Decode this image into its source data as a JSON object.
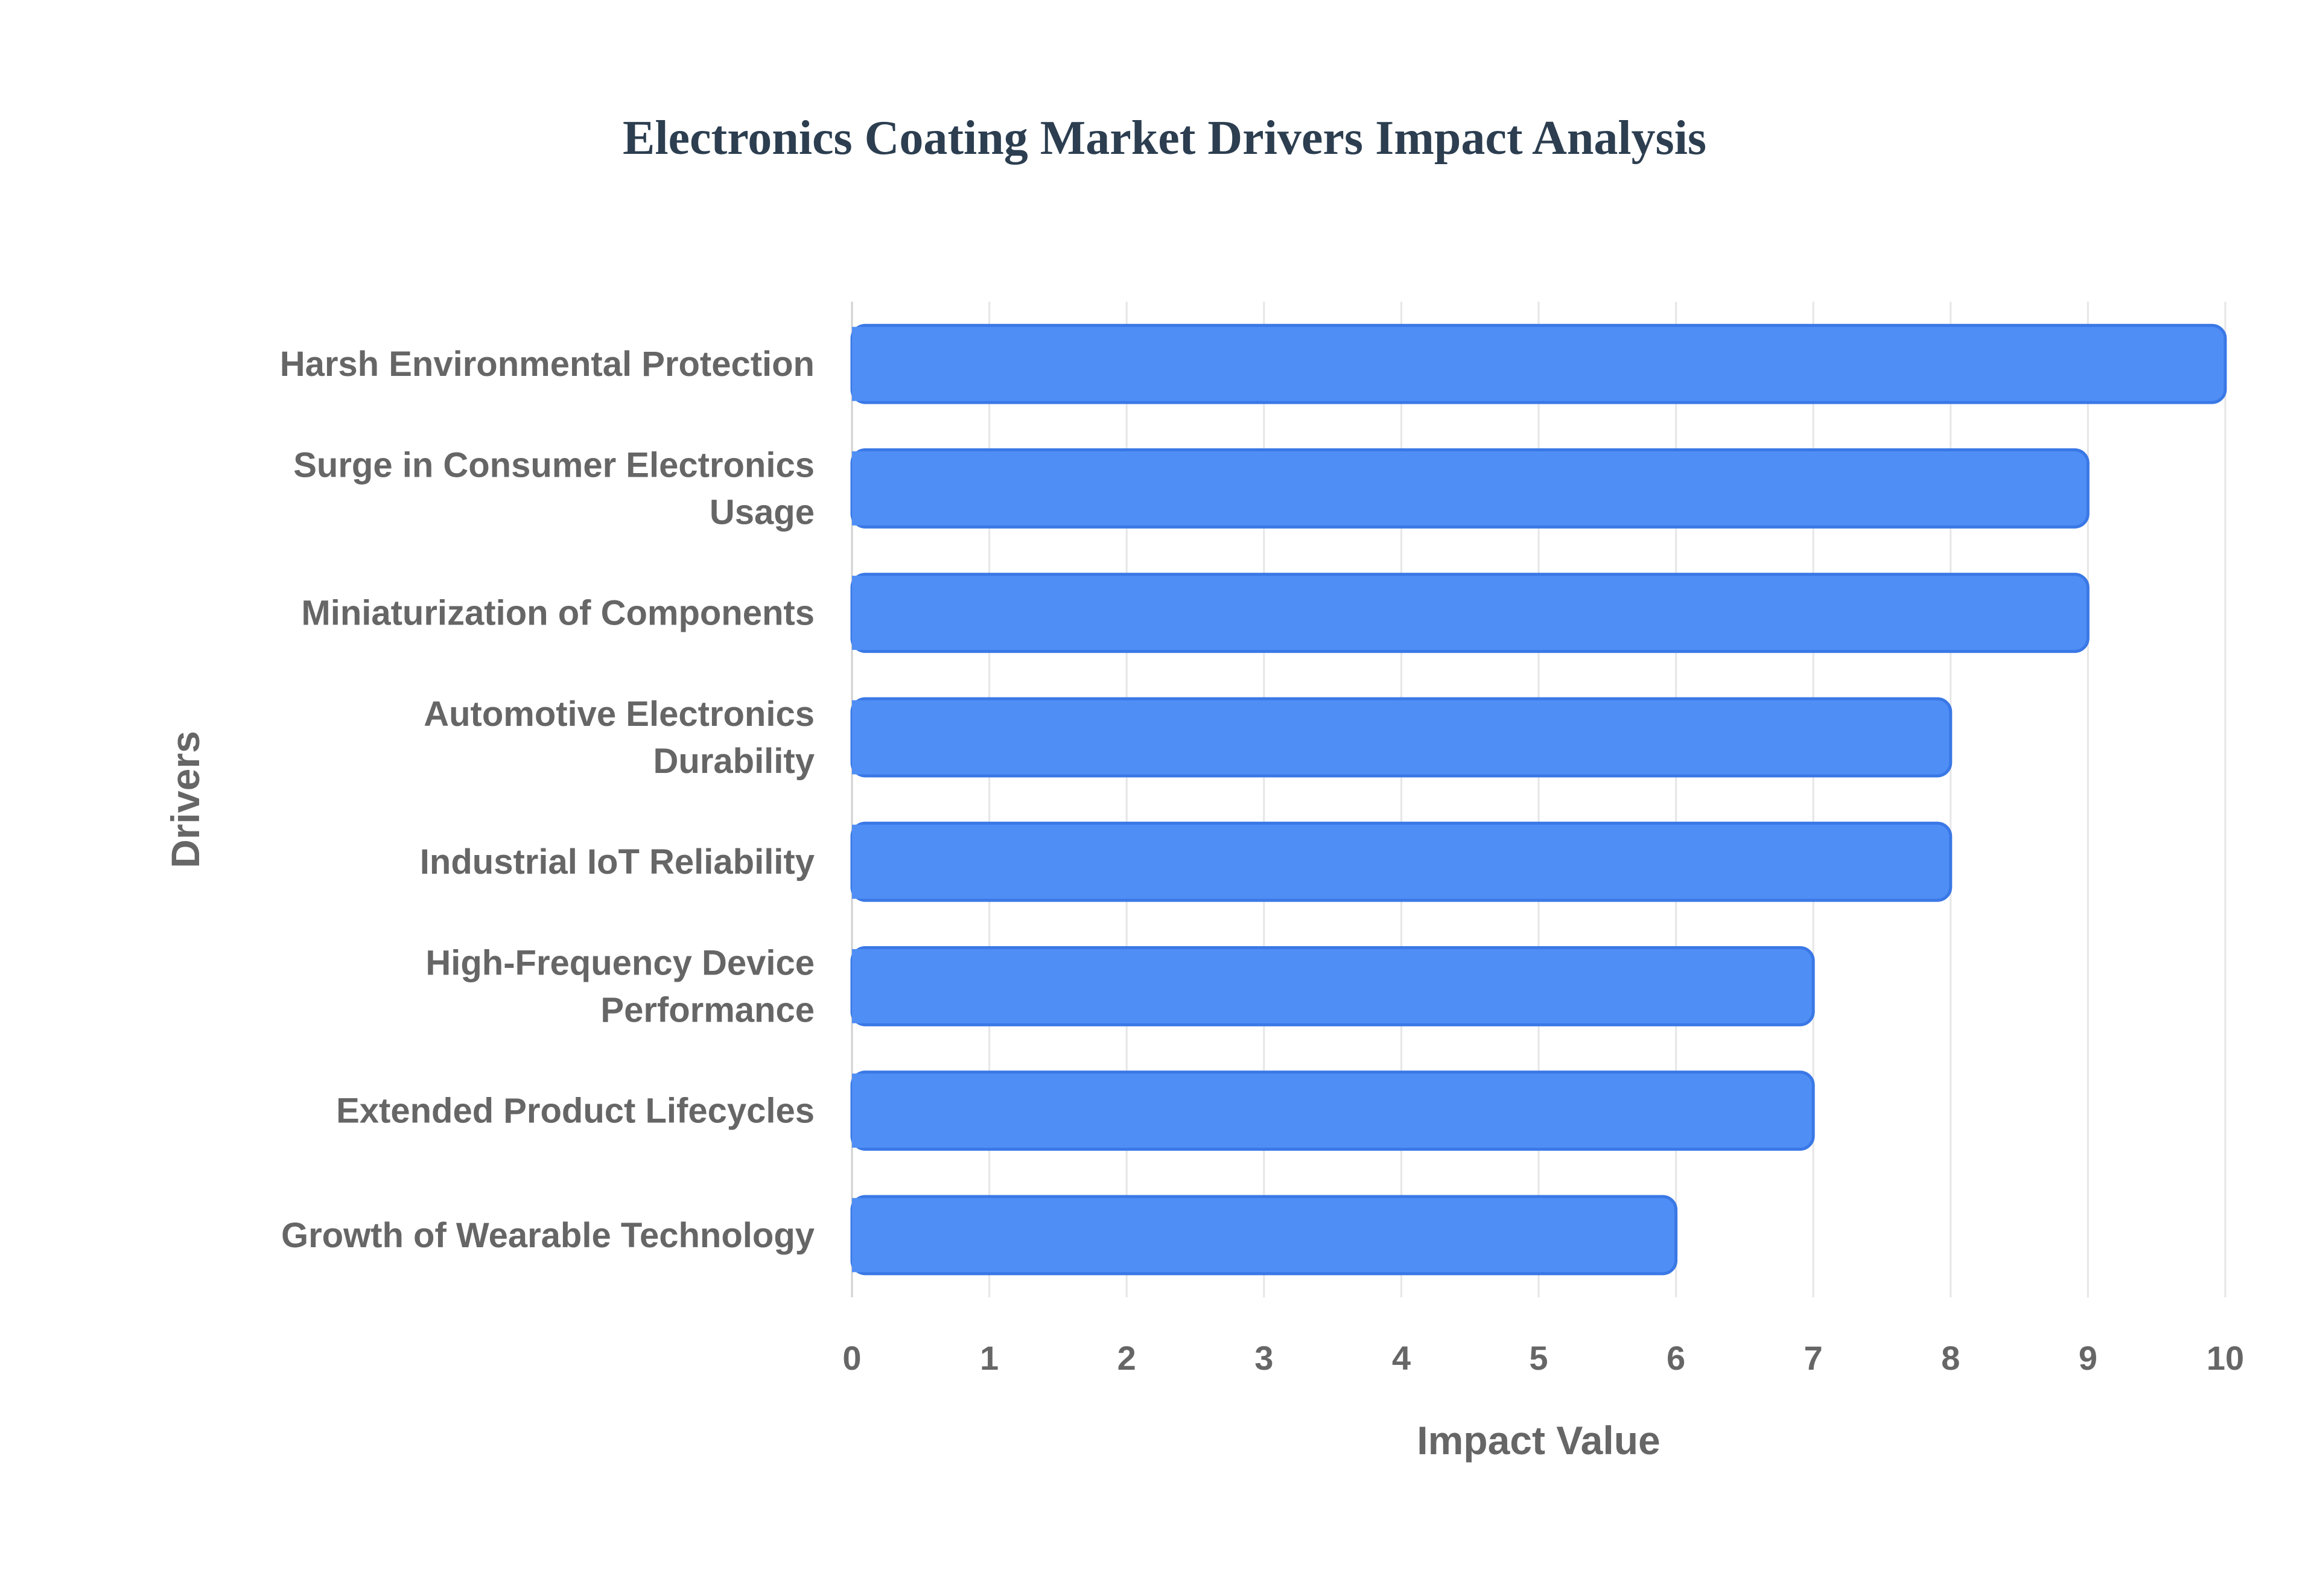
{
  "chart_data": {
    "type": "bar",
    "orientation": "horizontal",
    "title": "Electronics Coating Market Drivers Impact Analysis",
    "xlabel": "Impact Value",
    "ylabel": "Drivers",
    "categories": [
      "Harsh Environmental Protection",
      "Surge in Consumer Electronics Usage",
      "Miniaturization of Components",
      "Automotive Electronics Durability",
      "Industrial IoT Reliability",
      "High-Frequency Device Performance",
      "Extended Product Lifecycles",
      "Growth of Wearable Technology"
    ],
    "category_lines": [
      [
        "Harsh Environmental Protection"
      ],
      [
        "Surge in Consumer Electronics",
        "Usage"
      ],
      [
        "Miniaturization of Components"
      ],
      [
        "Automotive Electronics",
        "Durability"
      ],
      [
        "Industrial IoT Reliability"
      ],
      [
        "High-Frequency Device",
        "Performance"
      ],
      [
        "Extended Product Lifecycles"
      ],
      [
        "Growth of Wearable Technology"
      ]
    ],
    "values": [
      10,
      9,
      9,
      8,
      8,
      7,
      7,
      6
    ],
    "xlim": [
      0,
      10
    ],
    "xticks": [
      0,
      1,
      2,
      3,
      4,
      5,
      6,
      7,
      8,
      9,
      10
    ],
    "grid": true,
    "legend": "none",
    "colors": {
      "bar_fill": "#4f8ef5",
      "bar_stroke": "#3a78e6",
      "grid": "#e6e6e6",
      "axis_line": "#d0d0d0",
      "title": "#2c3e50",
      "label": "#666666"
    }
  }
}
